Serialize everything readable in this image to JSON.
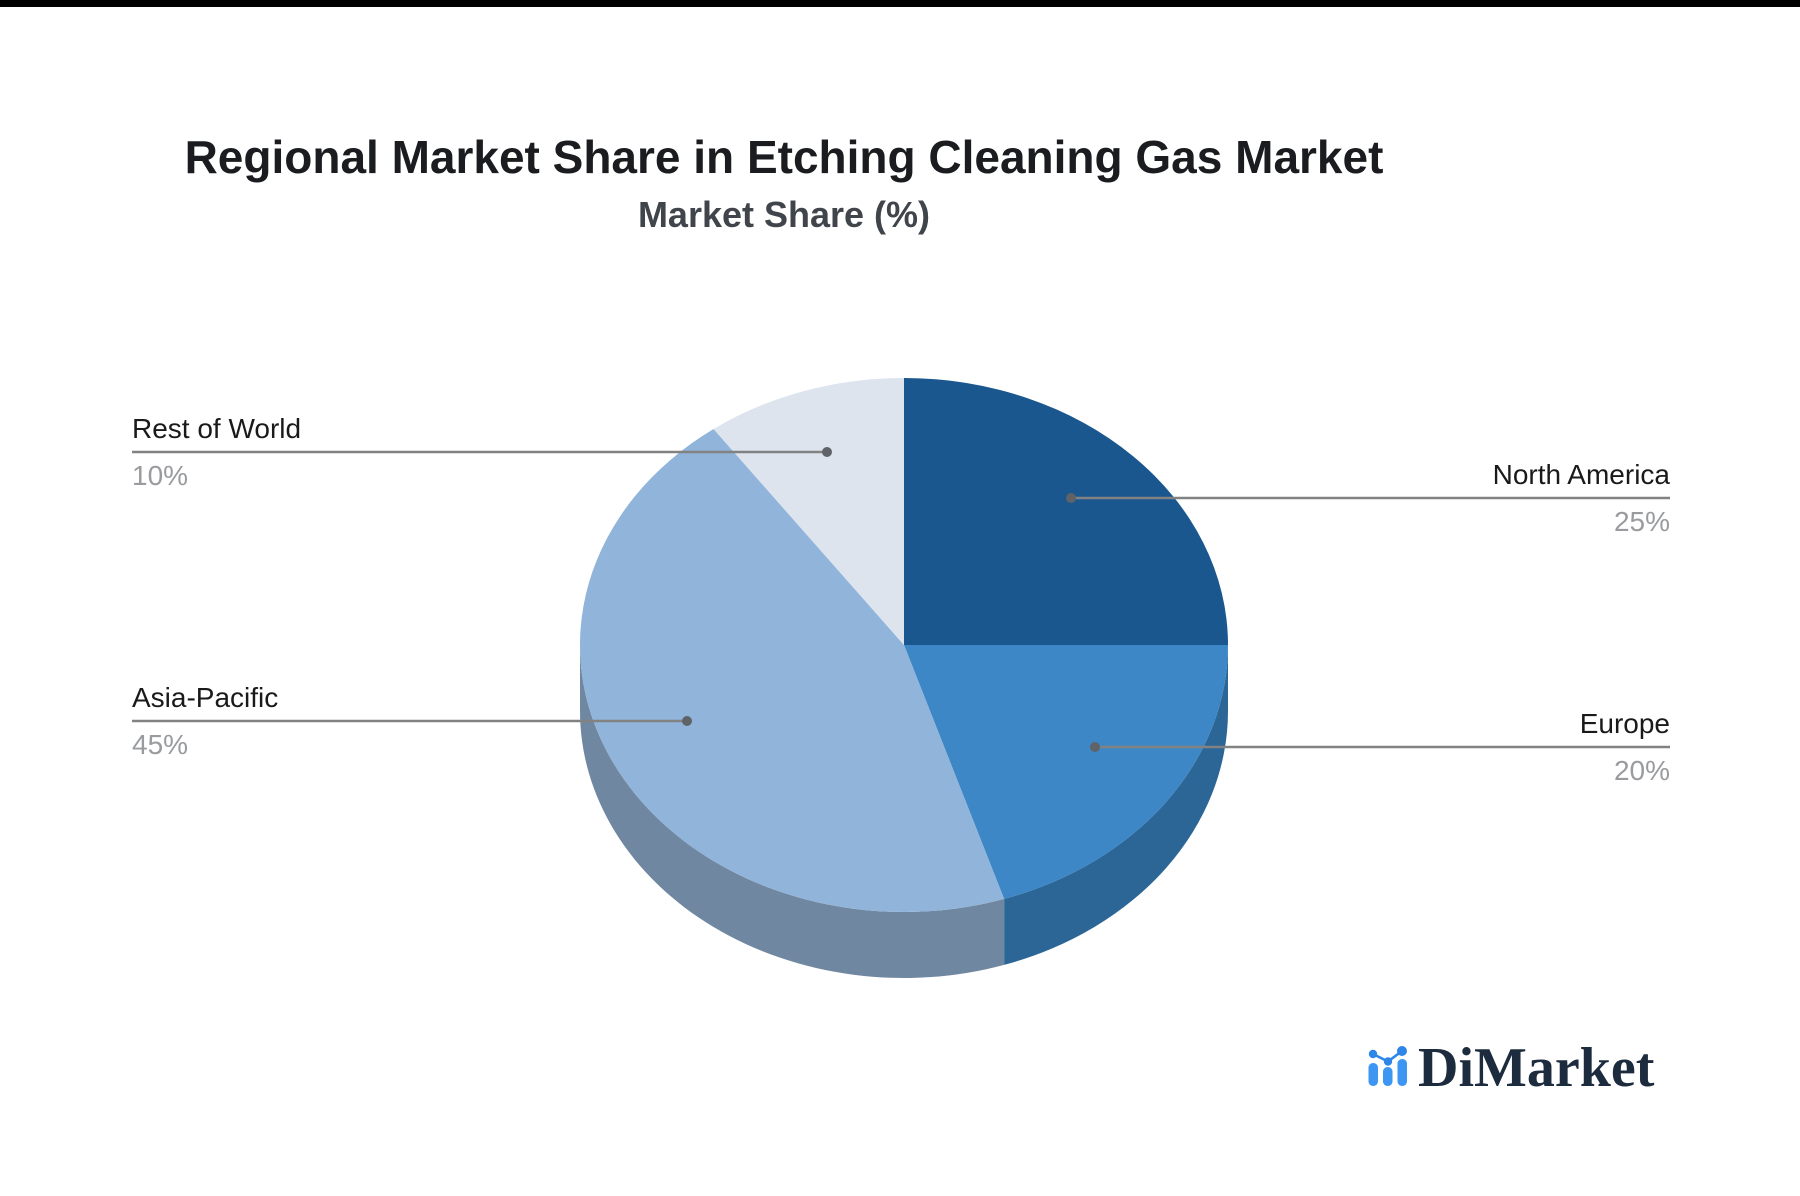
{
  "page": {
    "top_border_color": "#000000",
    "background_color": "#ffffff"
  },
  "header": {
    "title": "Regional Market Share in Etching Cleaning Gas Market",
    "subtitle": "Market Share (%)"
  },
  "chart_data": {
    "type": "pie",
    "style": "3d",
    "title": "Regional Market Share in Etching Cleaning Gas Market",
    "value_label": "Market Share (%)",
    "unit": "%",
    "start_angle_deg": 0,
    "direction": "clockwise",
    "labels": [
      "North America",
      "Europe",
      "Asia-Pacific",
      "Rest of World"
    ],
    "values": [
      25,
      20,
      45,
      10
    ],
    "value_labels": [
      "25%",
      "20%",
      "45%",
      "10%"
    ],
    "colors": [
      "#1a578f",
      "#3d87c6",
      "#90b4da",
      "#dde4ee"
    ],
    "side_colors": [
      "#14456f",
      "#2b6696",
      "#6f87a1",
      "#b9c4d3"
    ],
    "callout_line_color": "#828282",
    "callout_dot_color": "#5f6368",
    "legend": "none"
  },
  "logo": {
    "text": "DiMarket",
    "icon": "bar-line-chart-icon",
    "icon_color": "#3e96f3",
    "text_color": "#1c2b3d"
  }
}
